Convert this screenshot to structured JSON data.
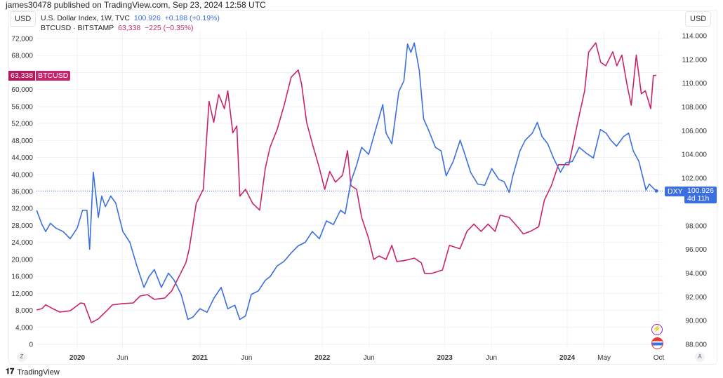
{
  "header": {
    "published": "james30478 published on TradingView.com, Sep 23, 2024 12:58 UTC"
  },
  "left_currency": "USD",
  "right_currency": "USD",
  "legend": {
    "dxy": {
      "name": "U.S. Dollar Index, 1W, TVC",
      "price": "100.926",
      "change": "+0.188 (+0.19%)"
    },
    "btc": {
      "name": "BTCUSD · BITSTAMP",
      "price": "63,338",
      "change": "−225 (−0.35%)"
    }
  },
  "badges": {
    "btc": {
      "value": "63,338",
      "label": "BTCUSD"
    },
    "dxy": {
      "label": "DXY",
      "value": "100.926",
      "countdown": "4d 11h"
    }
  },
  "axis_buttons": {
    "left": "Z",
    "right": "A"
  },
  "footer": {
    "brand": "TradingView"
  },
  "colors": {
    "btc": "#c8246c",
    "dxy": "#3b6fe0"
  },
  "chart_data": {
    "type": "line",
    "title": "",
    "grid": true,
    "x_axis": {
      "type": "date",
      "range": [
        "2019-09-01",
        "2024-09-30"
      ],
      "ticks": [
        {
          "date": "2020-01-01",
          "label": "2020",
          "bold": true
        },
        {
          "date": "2020-05-15",
          "label": "Jun"
        },
        {
          "date": "2021-01-01",
          "label": "2021",
          "bold": true
        },
        {
          "date": "2021-05-20",
          "label": "Jun"
        },
        {
          "date": "2022-01-01",
          "label": "2022",
          "bold": true
        },
        {
          "date": "2022-05-20",
          "label": "Jun"
        },
        {
          "date": "2023-01-01",
          "label": "2023",
          "bold": true
        },
        {
          "date": "2023-05-20",
          "label": "Jun"
        },
        {
          "date": "2024-01-01",
          "label": "2024",
          "bold": true
        },
        {
          "date": "2024-04-20",
          "label": "May"
        },
        {
          "date": "2024-09-30",
          "label": "Oct"
        }
      ]
    },
    "left_axis": {
      "series": "BTCUSD",
      "range": [
        0,
        72000
      ],
      "ticks": [
        "0",
        "4,000",
        "8,000",
        "12,000",
        "16,000",
        "20,000",
        "24,000",
        "28,000",
        "32,000",
        "36,000",
        "40,000",
        "44,000",
        "48,000",
        "52,000",
        "56,000",
        "60,000",
        "64,000",
        "68,000",
        "72,000"
      ]
    },
    "right_axis": {
      "series": "DXY",
      "range": [
        88,
        114
      ],
      "ticks": [
        "88.000",
        "90.000",
        "92.000",
        "94.000",
        "96.000",
        "98.000",
        "100.000",
        "102.000",
        "104.000",
        "106.000",
        "108.000",
        "110.000",
        "112.000",
        "114.000"
      ]
    },
    "series": [
      {
        "name": "BTCUSD",
        "axis": "left",
        "color": "#c8246c",
        "x": [
          "2019-09-02",
          "2019-09-18",
          "2019-09-29",
          "2019-10-20",
          "2019-11-10",
          "2019-12-11",
          "2020-01-11",
          "2020-01-22",
          "2020-02-12",
          "2020-03-04",
          "2020-03-25",
          "2020-04-15",
          "2020-05-16",
          "2020-06-16",
          "2020-07-07",
          "2020-07-28",
          "2020-08-18",
          "2020-09-18",
          "2020-10-09",
          "2020-10-30",
          "2020-11-20",
          "2020-11-30",
          "2020-12-21",
          "2021-01-11",
          "2021-01-28",
          "2021-02-11",
          "2021-02-26",
          "2021-03-15",
          "2021-03-25",
          "2021-04-09",
          "2021-04-21",
          "2021-04-30",
          "2021-05-17",
          "2021-06-07",
          "2021-06-28",
          "2021-07-15",
          "2021-07-29",
          "2021-08-19",
          "2021-09-09",
          "2021-09-30",
          "2021-10-21",
          "2021-10-31",
          "2021-11-15",
          "2021-12-02",
          "2021-12-23",
          "2022-01-08",
          "2022-01-23",
          "2022-02-09",
          "2022-03-02",
          "2022-03-17",
          "2022-03-27",
          "2022-04-13",
          "2022-04-28",
          "2022-05-19",
          "2022-06-03",
          "2022-06-19",
          "2022-07-10",
          "2022-07-27",
          "2022-08-11",
          "2022-09-01",
          "2022-10-02",
          "2022-10-23",
          "2022-11-02",
          "2022-11-23",
          "2022-12-25",
          "2023-01-15",
          "2023-02-15",
          "2023-03-08",
          "2023-03-29",
          "2023-04-19",
          "2023-05-10",
          "2023-05-31",
          "2023-06-15",
          "2023-07-12",
          "2023-08-09",
          "2023-08-23",
          "2023-09-13",
          "2023-10-08",
          "2023-10-25",
          "2023-11-15",
          "2023-12-06",
          "2024-01-06",
          "2024-02-01",
          "2024-02-22",
          "2024-03-05",
          "2024-03-26",
          "2024-04-10",
          "2024-04-25",
          "2024-05-16",
          "2024-05-28",
          "2024-06-12",
          "2024-06-27",
          "2024-07-10",
          "2024-07-25",
          "2024-08-09",
          "2024-08-21",
          "2024-09-06",
          "2024-09-14",
          "2024-09-23"
        ],
        "y": [
          8100,
          8400,
          9300,
          8400,
          7600,
          7900,
          9750,
          9600,
          5100,
          6000,
          7600,
          9300,
          9600,
          9750,
          11400,
          11700,
          10600,
          10900,
          12600,
          15900,
          19200,
          22500,
          33200,
          36500,
          57200,
          52300,
          58800,
          55500,
          59700,
          49800,
          51400,
          34900,
          36500,
          33200,
          31600,
          41500,
          46400,
          50600,
          56300,
          62900,
          64600,
          61300,
          52300,
          47300,
          41500,
          36500,
          40700,
          38200,
          39800,
          45600,
          37400,
          36500,
          29900,
          24900,
          20000,
          20800,
          20000,
          23300,
          19500,
          19700,
          20300,
          19200,
          16700,
          16700,
          17500,
          23300,
          22500,
          26600,
          28300,
          26600,
          28300,
          26600,
          30400,
          29900,
          27400,
          26000,
          26600,
          27700,
          34000,
          37400,
          42300,
          42300,
          52200,
          59700,
          68800,
          71000,
          66400,
          65600,
          68900,
          65600,
          68100,
          61300,
          56300,
          68100,
          59000,
          59700,
          55500,
          63300,
          63338
        ]
      },
      {
        "name": "DXY",
        "axis": "right",
        "color": "#3b6fe0",
        "x": [
          "2019-09-02",
          "2019-09-18",
          "2019-09-29",
          "2019-10-13",
          "2019-10-29",
          "2019-11-20",
          "2019-12-11",
          "2020-01-01",
          "2020-01-17",
          "2020-01-30",
          "2020-02-07",
          "2020-02-18",
          "2020-03-04",
          "2020-03-14",
          "2020-03-25",
          "2020-04-10",
          "2020-04-25",
          "2020-05-16",
          "2020-06-06",
          "2020-06-27",
          "2020-07-18",
          "2020-08-02",
          "2020-08-18",
          "2020-09-08",
          "2020-09-29",
          "2020-10-16",
          "2020-11-06",
          "2020-11-26",
          "2020-12-11",
          "2021-01-01",
          "2021-01-22",
          "2021-02-12",
          "2021-03-05",
          "2021-03-25",
          "2021-04-15",
          "2021-04-30",
          "2021-05-17",
          "2021-06-03",
          "2021-06-24",
          "2021-07-15",
          "2021-07-29",
          "2021-08-19",
          "2021-09-09",
          "2021-09-30",
          "2021-10-21",
          "2021-11-11",
          "2021-12-02",
          "2021-12-23",
          "2022-01-13",
          "2022-02-03",
          "2022-02-24",
          "2022-03-10",
          "2022-03-27",
          "2022-04-13",
          "2022-04-28",
          "2022-05-19",
          "2022-06-09",
          "2022-06-30",
          "2022-07-10",
          "2022-07-27",
          "2022-08-17",
          "2022-09-01",
          "2022-09-12",
          "2022-09-22",
          "2022-10-02",
          "2022-10-17",
          "2022-10-30",
          "2022-11-13",
          "2022-12-04",
          "2022-12-21",
          "2023-01-05",
          "2023-01-26",
          "2023-02-16",
          "2023-03-02",
          "2023-03-19",
          "2023-04-09",
          "2023-04-30",
          "2023-05-21",
          "2023-06-11",
          "2023-06-27",
          "2023-07-12",
          "2023-07-23",
          "2023-08-13",
          "2023-08-29",
          "2023-09-19",
          "2023-10-04",
          "2023-10-18",
          "2023-11-04",
          "2023-11-21",
          "2023-12-12",
          "2023-12-28",
          "2024-01-16",
          "2024-02-06",
          "2024-02-27",
          "2024-03-19",
          "2024-04-09",
          "2024-04-26",
          "2024-05-10",
          "2024-05-27",
          "2024-06-17",
          "2024-07-02",
          "2024-07-16",
          "2024-08-02",
          "2024-08-15",
          "2024-08-23",
          "2024-09-02",
          "2024-09-12",
          "2024-09-23"
        ],
        "y": [
          99.3,
          98.1,
          97.5,
          98.2,
          97.8,
          97.5,
          96.9,
          97.8,
          99.3,
          99.3,
          96.0,
          102.5,
          98.7,
          100.5,
          99.6,
          100.5,
          99.9,
          97.5,
          96.6,
          94.6,
          92.8,
          93.7,
          94.3,
          92.8,
          94.0,
          93.4,
          92.2,
          90.1,
          90.3,
          91.0,
          90.7,
          91.9,
          92.8,
          91.0,
          91.3,
          90.1,
          90.4,
          92.2,
          92.5,
          93.4,
          93.7,
          94.6,
          95.0,
          95.7,
          96.3,
          96.6,
          97.5,
          96.9,
          98.4,
          98.1,
          99.3,
          99.0,
          101.7,
          103.1,
          104.6,
          104.0,
          106.1,
          108.2,
          105.8,
          104.9,
          109.3,
          110.2,
          113.3,
          112.6,
          113.4,
          111.1,
          107.0,
          106.1,
          104.6,
          104.3,
          102.2,
          103.4,
          105.2,
          104.0,
          102.5,
          101.5,
          101.4,
          102.8,
          101.9,
          101.7,
          100.8,
          102.2,
          104.3,
          105.2,
          105.8,
          106.7,
          105.5,
          104.9,
          103.7,
          102.5,
          103.3,
          103.4,
          104.6,
          104.1,
          103.7,
          106.1,
          105.8,
          105.2,
          104.7,
          105.5,
          105.8,
          104.3,
          103.4,
          101.9,
          101.0,
          101.5,
          101.2,
          100.926
        ]
      }
    ]
  }
}
